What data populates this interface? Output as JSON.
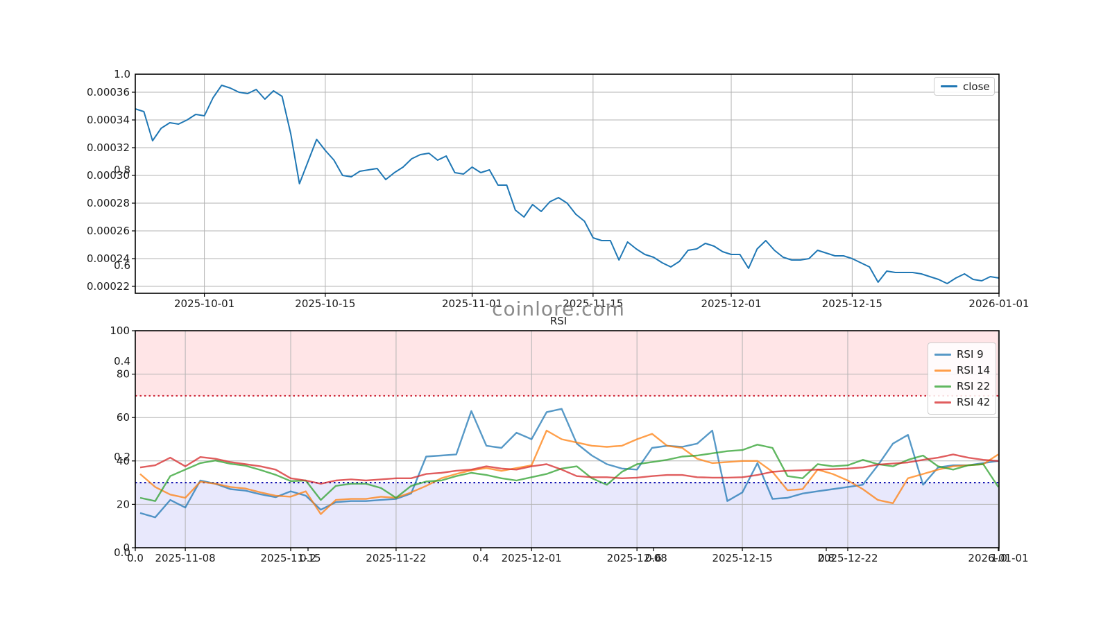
{
  "watermark": "coinlore.com",
  "overlay_axis": {
    "x_tick_labels": [
      "0.0",
      "0.2",
      "0.4",
      "0.6",
      "0.8",
      "1.0"
    ],
    "y_tick_labels": [
      "1.0",
      "0.8",
      "0.6",
      "0.4",
      "0.2",
      "0.0"
    ]
  },
  "chart_data": [
    {
      "type": "line",
      "title": "",
      "x_start_date": "2025-09-23",
      "x_tick_labels": [
        "2025-10-01",
        "2025-10-15",
        "2025-11-01",
        "2025-11-15",
        "2025-12-01",
        "2025-12-15",
        "2026-01-01"
      ],
      "x_tick_days": [
        8,
        22,
        39,
        53,
        69,
        83,
        100
      ],
      "y_ticks": [
        0.00022,
        0.00024,
        0.00026,
        0.00028,
        0.0003,
        0.00032,
        0.00034,
        0.00036
      ],
      "ylim": [
        0.0002155,
        0.000373
      ],
      "grid": true,
      "legend_position": "upper right",
      "series": [
        {
          "name": "close",
          "color": "#1f77b4",
          "values": [
            0.000348,
            0.000346,
            0.000325,
            0.000334,
            0.000338,
            0.000337,
            0.00034,
            0.000344,
            0.000343,
            0.000356,
            0.000365,
            0.000363,
            0.00036,
            0.000359,
            0.000362,
            0.000355,
            0.000361,
            0.000357,
            0.00033,
            0.000294,
            0.00031,
            0.000326,
            0.000318,
            0.000311,
            0.0003,
            0.000299,
            0.000303,
            0.000304,
            0.000305,
            0.000297,
            0.000302,
            0.000306,
            0.000312,
            0.000315,
            0.000316,
            0.000311,
            0.000314,
            0.000302,
            0.000301,
            0.000306,
            0.000302,
            0.000304,
            0.000293,
            0.000293,
            0.000275,
            0.00027,
            0.000279,
            0.000274,
            0.000281,
            0.000284,
            0.00028,
            0.000272,
            0.000267,
            0.000255,
            0.000253,
            0.000253,
            0.000239,
            0.000252,
            0.000247,
            0.000243,
            0.000241,
            0.000237,
            0.000234,
            0.000238,
            0.000246,
            0.000247,
            0.000251,
            0.000249,
            0.000245,
            0.000243,
            0.000243,
            0.000233,
            0.000247,
            0.000253,
            0.000246,
            0.000241,
            0.000239,
            0.000239,
            0.00024,
            0.000246,
            0.000244,
            0.000242,
            0.000242,
            0.00024,
            0.000237,
            0.000234,
            0.000223,
            0.000231,
            0.00023,
            0.00023,
            0.00023,
            0.000229,
            0.000227,
            0.000225,
            0.000222,
            0.000226,
            0.000229,
            0.000225,
            0.000224,
            0.000227,
            0.000226
          ]
        }
      ]
    },
    {
      "type": "line",
      "title": "RSI",
      "x_start_date": "2025-11-05",
      "x_tick_labels": [
        "2025-11-08",
        "2025-11-15",
        "2025-11-22",
        "2025-12-01",
        "2025-12-08",
        "2025-12-15",
        "2025-12-22",
        "2026-01-01"
      ],
      "x_tick_idx": [
        3,
        10,
        17,
        26,
        33,
        40,
        47,
        57
      ],
      "y_ticks": [
        0,
        20,
        40,
        60,
        80,
        100
      ],
      "ylim": [
        0,
        100
      ],
      "grid": true,
      "overbought_level": 70,
      "oversold_level": 30,
      "band_colors": {
        "overbought": "rgba(255,30,40,0.115)",
        "oversold": "rgba(55,55,225,0.115)"
      },
      "threshold_line_colors": {
        "overbought": "#cc2233",
        "oversold": "#0000aa"
      },
      "legend_position": "upper right",
      "series": [
        {
          "name": "RSI 9",
          "color": "rgba(31,119,180,0.75)",
          "values": [
            16,
            14,
            22,
            18.5,
            31,
            29.5,
            27,
            26.3,
            24.6,
            23.3,
            26,
            24,
            17.5,
            21,
            21.5,
            21.5,
            22,
            22.5,
            25,
            42,
            42.5,
            43,
            63,
            47,
            46,
            53,
            50,
            62.5,
            64,
            48,
            42.5,
            38.5,
            36.5,
            36,
            46,
            47,
            46.5,
            48,
            54,
            21.5,
            25.5,
            39,
            22.5,
            23,
            25,
            26,
            27,
            28,
            29,
            38,
            48,
            52,
            29,
            37,
            38,
            38,
            39,
            40
          ]
        },
        {
          "name": "RSI 14",
          "color": "rgba(255,127,14,0.75)",
          "values": [
            34,
            28,
            24.5,
            23,
            30.4,
            29.5,
            28,
            27.3,
            25.5,
            24,
            23.5,
            26,
            15.5,
            22,
            22.5,
            22.5,
            23.5,
            23,
            25.5,
            28.5,
            32,
            34,
            35.7,
            36.7,
            35.4,
            36.7,
            38,
            54,
            50,
            48.5,
            47,
            46.5,
            47,
            50,
            52.5,
            47,
            46,
            41,
            39,
            39.5,
            40,
            40,
            35,
            26.5,
            27,
            36,
            34,
            31,
            27,
            22,
            20.5,
            32,
            34,
            36,
            37.5,
            38,
            38.5,
            43
          ]
        },
        {
          "name": "RSI 22",
          "color": "rgba(44,160,44,0.75)",
          "values": [
            23,
            21.5,
            33,
            36,
            39,
            40.2,
            38.7,
            37.8,
            35.8,
            33.6,
            30.7,
            31,
            22,
            28.5,
            29.5,
            29.5,
            27.5,
            23,
            28.5,
            30.5,
            31,
            33,
            34.5,
            33.5,
            32,
            31,
            32.5,
            34,
            36.5,
            37.5,
            32,
            29,
            35,
            38.5,
            39.5,
            40.5,
            42,
            42.5,
            43.5,
            44.5,
            45,
            47.5,
            46,
            33,
            32,
            38.5,
            37.5,
            38,
            40.5,
            38.5,
            37.5,
            40.5,
            42.5,
            37.5,
            36,
            38,
            38.5,
            28
          ]
        },
        {
          "name": "RSI 42",
          "color": "rgba(214,39,40,0.75)",
          "values": [
            37,
            38,
            41.5,
            37.5,
            41.8,
            41,
            39.5,
            38.5,
            37.5,
            36,
            32,
            31,
            29.5,
            31,
            31.5,
            31,
            31.5,
            32,
            32,
            34,
            34.5,
            35.5,
            36,
            37.5,
            36.5,
            36,
            37.5,
            38.5,
            36,
            33,
            32.5,
            32.5,
            32,
            32.3,
            33,
            33.5,
            33.5,
            32.5,
            32.3,
            32.3,
            32.5,
            33.5,
            35,
            35.5,
            35.7,
            36,
            36.2,
            36.5,
            37,
            38.3,
            38.8,
            39.3,
            40.5,
            41.5,
            43,
            41.5,
            40.5,
            40
          ]
        }
      ]
    }
  ]
}
